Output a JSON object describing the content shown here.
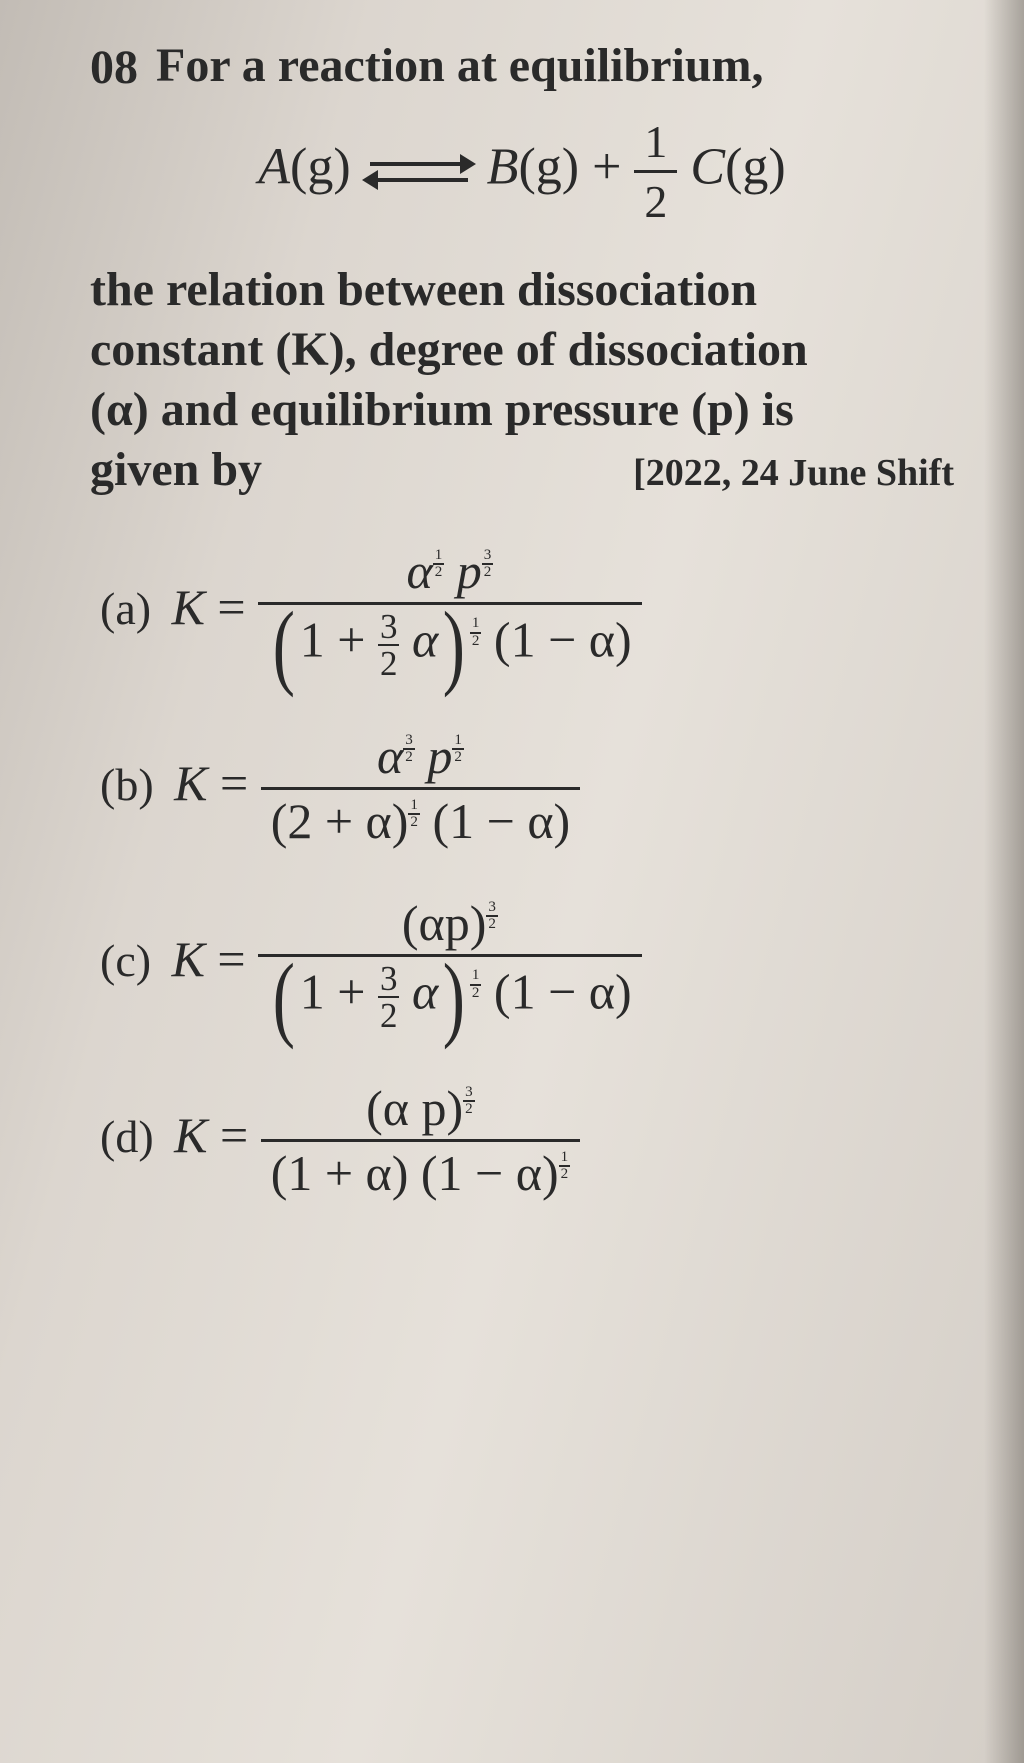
{
  "question": {
    "number": "08",
    "stem_line1": "For a reaction at equilibrium,",
    "equation": {
      "lhs_species": "A",
      "lhs_phase": "(g)",
      "rhs1_species": "B",
      "rhs1_phase": "(g)",
      "plus": "+",
      "coeff_num": "1",
      "coeff_den": "2",
      "rhs2_species": "C",
      "rhs2_phase": "(g)"
    },
    "stem_line2a": "the relation between dissociation",
    "stem_line2b": "constant (K), degree of dissociation",
    "stem_line2c": "(α) and equilibrium pressure (p) is",
    "given_by": "given by",
    "attribution": "[2022, 24 June Shift"
  },
  "options": {
    "a": {
      "label": "(a)",
      "K": "K",
      "eq": "=",
      "num_alpha_exp_n": "1",
      "num_alpha_exp_d": "2",
      "num_p_exp_n": "3",
      "num_p_exp_d": "2",
      "den_inner_coeff_n": "3",
      "den_inner_coeff_d": "2",
      "den_outer_exp_n": "1",
      "den_outer_exp_d": "2",
      "one": "1",
      "alpha": "α",
      "p": "p",
      "plus": "+",
      "minus": "−",
      "tail": "(1 − α)"
    },
    "b": {
      "label": "(b)",
      "K": "K",
      "eq": "=",
      "num_alpha_exp_n": "3",
      "num_alpha_exp_d": "2",
      "num_p_exp_n": "1",
      "num_p_exp_d": "2",
      "den_base": "(2 + α)",
      "den_exp_n": "1",
      "den_exp_d": "2",
      "tail": "(1 − α)",
      "alpha": "α",
      "p": "p"
    },
    "c": {
      "label": "(c)",
      "K": "K",
      "eq": "=",
      "num_base": "(αp)",
      "num_exp_n": "3",
      "num_exp_d": "2",
      "den_inner_coeff_n": "3",
      "den_inner_coeff_d": "2",
      "den_outer_exp_n": "1",
      "den_outer_exp_d": "2",
      "one": "1",
      "alpha": "α",
      "plus": "+",
      "tail": "(1 − α)"
    },
    "d": {
      "label": "(d)",
      "K": "K",
      "eq": "=",
      "num_base": "(α p)",
      "num_exp_n": "3",
      "num_exp_d": "2",
      "den_a": "(1 + α)",
      "den_b": "(1 − α)",
      "den_b_exp_n": "1",
      "den_b_exp_d": "2"
    }
  }
}
